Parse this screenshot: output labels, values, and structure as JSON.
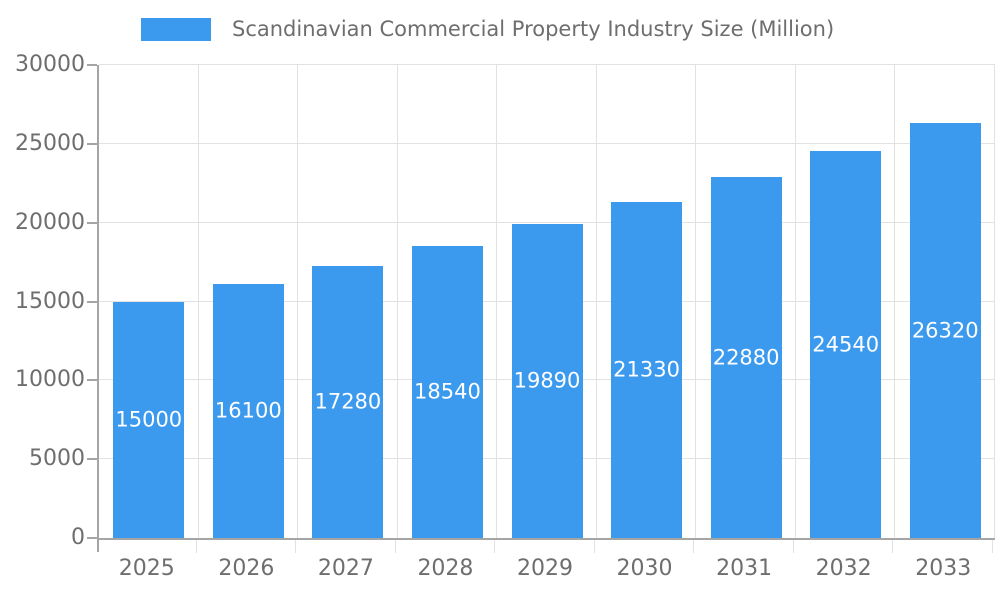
{
  "legend": {
    "label": "Scandinavian Commercial Property Industry Size (Million)"
  },
  "chart_data": {
    "type": "bar",
    "title": "Scandinavian Commercial Property Industry Size (Million)",
    "categories": [
      "2025",
      "2026",
      "2027",
      "2028",
      "2029",
      "2030",
      "2031",
      "2032",
      "2033"
    ],
    "values": [
      15000,
      16100,
      17280,
      18540,
      19890,
      21330,
      22880,
      24540,
      26320
    ],
    "bar_value_labels": [
      "15000",
      "16100",
      "17280",
      "18540",
      "19890",
      "21330",
      "22880",
      "24540",
      "26320"
    ],
    "xlabel": "",
    "ylabel": "",
    "ylim": [
      0,
      30000
    ],
    "yticks": [
      0,
      5000,
      10000,
      15000,
      20000,
      25000,
      30000
    ],
    "grid": true,
    "legend_position": "top"
  },
  "colors": {
    "bar": "#3C9AEE",
    "bar_label": "#FFFFFF",
    "grid": "#E2E2E2",
    "axis": "#A5A5A5",
    "text": "#6E6E6E",
    "background": "#FFFFFF"
  }
}
